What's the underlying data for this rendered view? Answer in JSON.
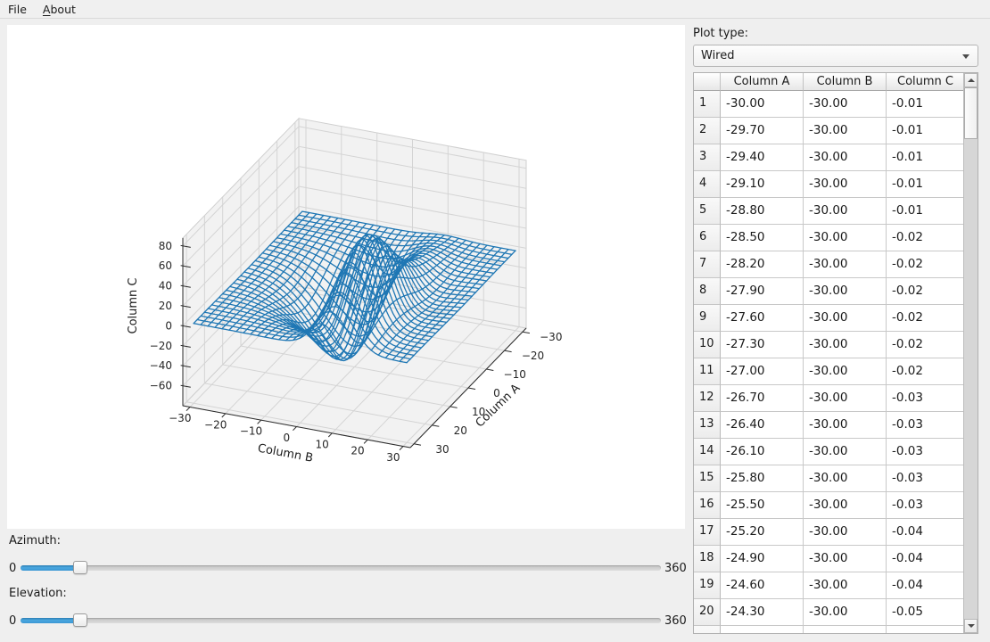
{
  "menu": {
    "items": [
      {
        "id": "file",
        "label": "File",
        "underline": -1
      },
      {
        "id": "about",
        "label": "About",
        "underline": 0
      }
    ]
  },
  "chart_data": {
    "type": "wireframe",
    "title": "",
    "xlabel": "Column A",
    "ylabel": "Column B",
    "zlabel": "Column C",
    "xlim": [
      -32,
      32
    ],
    "ylim": [
      -32,
      32
    ],
    "zlim": [
      -80,
      88
    ],
    "xticks": [
      -30,
      -20,
      -10,
      0,
      10,
      20,
      30
    ],
    "yticks": [
      -30,
      -20,
      -10,
      0,
      10,
      20,
      30
    ],
    "zticks": [
      -60,
      -40,
      -20,
      0,
      20,
      40,
      60,
      80
    ],
    "view": {
      "azimuth_deg": 30,
      "elevation_deg": 30
    },
    "wire_color": "#1f77b4",
    "pane_color": "#f2f2f2",
    "grid_color": "#d4d4d4",
    "axis_line_color": "#2b2b2b",
    "mesh_step": 2,
    "data_range": [
      -30,
      30
    ],
    "z_range_data": [
      -68.1,
      76.8
    ],
    "surface_function": "z = 500*(G2 - G1); G1 = exp(-((x/10)^2+(y/10)^2)/2)/(2*pi); G2 = exp(-((((x/10)-1)/1.5)^2+(((y/10)-1)/0.5)^2)/2)/(2*pi*0.75); x = Column A, y = Column B"
  },
  "controls": {
    "plot_type_label": "Plot type:",
    "plot_type": {
      "value": "Wired"
    },
    "azimuth": {
      "label": "Azimuth:",
      "min": 0,
      "max": 360,
      "value": 30,
      "min_label": "0",
      "max_label": "360"
    },
    "elevation": {
      "label": "Elevation:",
      "min": 0,
      "max": 360,
      "value": 30,
      "min_label": "0",
      "max_label": "360"
    }
  },
  "table": {
    "headers": [
      "Column A",
      "Column B",
      "Column C"
    ],
    "rows": [
      [
        "1",
        "-30.00",
        "-30.00",
        "-0.01"
      ],
      [
        "2",
        "-29.70",
        "-30.00",
        "-0.01"
      ],
      [
        "3",
        "-29.40",
        "-30.00",
        "-0.01"
      ],
      [
        "4",
        "-29.10",
        "-30.00",
        "-0.01"
      ],
      [
        "5",
        "-28.80",
        "-30.00",
        "-0.01"
      ],
      [
        "6",
        "-28.50",
        "-30.00",
        "-0.02"
      ],
      [
        "7",
        "-28.20",
        "-30.00",
        "-0.02"
      ],
      [
        "8",
        "-27.90",
        "-30.00",
        "-0.02"
      ],
      [
        "9",
        "-27.60",
        "-30.00",
        "-0.02"
      ],
      [
        "10",
        "-27.30",
        "-30.00",
        "-0.02"
      ],
      [
        "11",
        "-27.00",
        "-30.00",
        "-0.02"
      ],
      [
        "12",
        "-26.70",
        "-30.00",
        "-0.03"
      ],
      [
        "13",
        "-26.40",
        "-30.00",
        "-0.03"
      ],
      [
        "14",
        "-26.10",
        "-30.00",
        "-0.03"
      ],
      [
        "15",
        "-25.80",
        "-30.00",
        "-0.03"
      ],
      [
        "16",
        "-25.50",
        "-30.00",
        "-0.03"
      ],
      [
        "17",
        "-25.20",
        "-30.00",
        "-0.04"
      ],
      [
        "18",
        "-24.90",
        "-30.00",
        "-0.04"
      ],
      [
        "19",
        "-24.60",
        "-30.00",
        "-0.04"
      ],
      [
        "20",
        "-24.30",
        "-30.00",
        "-0.05"
      ]
    ]
  }
}
